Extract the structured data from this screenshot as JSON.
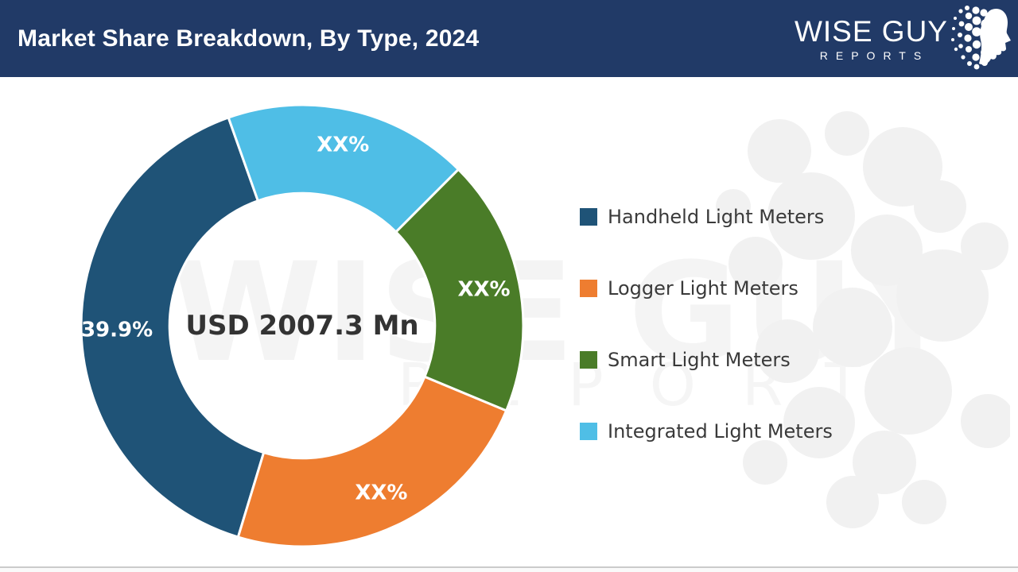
{
  "header": {
    "title": "Market Share Breakdown, By Type, 2024",
    "logo": {
      "line1": "WISE GUY",
      "line2": "REPORTS"
    }
  },
  "chart_data": {
    "type": "pie",
    "subtype": "donut",
    "title": "Market Share Breakdown, By Type, 2024",
    "center_label": "USD 2007.3 Mn",
    "donut_hole_ratio": 0.6,
    "start_angle_deg": 109.5,
    "direction": "counterclockwise",
    "legend_position": "right",
    "slices": [
      {
        "name": "Handheld Light Meters",
        "label": "39.9%",
        "value_pct": 39.9,
        "color": "#1F5377"
      },
      {
        "name": "Logger Light Meters",
        "label": "XX%",
        "value_pct": 23.4,
        "color": "#EE7D30"
      },
      {
        "name": "Smart Light Meters",
        "label": "XX%",
        "value_pct": 18.8,
        "color": "#4A7C28"
      },
      {
        "name": "Integrated Light Meters",
        "label": "XX%",
        "value_pct": 17.9,
        "color": "#4FBEE6"
      }
    ]
  },
  "watermark": {
    "line1": "WISE GUY",
    "line2": "REPORTS"
  },
  "colors": {
    "header_bg": "#213A67",
    "center_text": "#333333",
    "legend_text": "#3A3A3A",
    "slice_label_text": "#FFFFFF"
  }
}
